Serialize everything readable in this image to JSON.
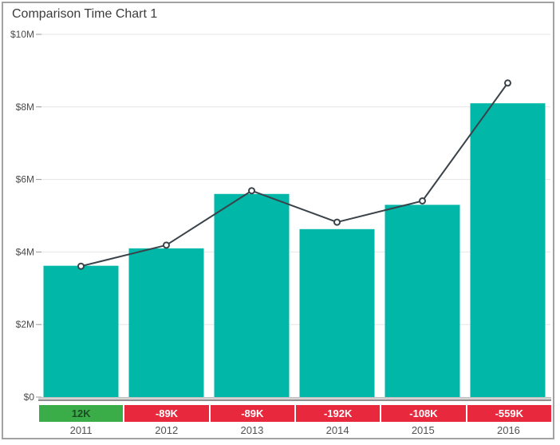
{
  "title": "Comparison Time Chart 1",
  "colors": {
    "bar": "#00b7a8",
    "line": "#3a434a",
    "marker_fill": "#ffffff",
    "marker_stroke": "#3a434a",
    "gridline": "#e5e5e5",
    "tick": "#9a9a9a",
    "axis_band_light": "#dcdcdc",
    "axis_band_mid": "#c2c2c2",
    "axis_band_dark": "#8f8f8f",
    "badge_positive_bg": "#3aad49",
    "badge_positive_text": "#1d4a22",
    "badge_negative_bg": "#e8283d",
    "badge_negative_text": "#ffffff",
    "title_text": "#3c3c3c",
    "y_label_text": "#4c4c4c",
    "year_text": "#525252",
    "widget_border": "#a2a2a2"
  },
  "chart_data": {
    "type": "combo",
    "title": "Comparison Time Chart 1",
    "categories": [
      "2011",
      "2012",
      "2013",
      "2014",
      "2015",
      "2016"
    ],
    "series": [
      {
        "name": "bars",
        "type": "bar",
        "values_usd_m": [
          3.62,
          4.1,
          5.6,
          4.63,
          5.3,
          8.1
        ]
      },
      {
        "name": "line",
        "type": "line",
        "values_usd_m": [
          3.608,
          4.189,
          5.689,
          4.822,
          5.408,
          8.659
        ]
      }
    ],
    "difference_labels": [
      {
        "value": "12K",
        "positive": true
      },
      {
        "value": "-89K",
        "positive": false
      },
      {
        "value": "-89K",
        "positive": false
      },
      {
        "value": "-192K",
        "positive": false
      },
      {
        "value": "-108K",
        "positive": false
      },
      {
        "value": "-559K",
        "positive": false
      }
    ],
    "y_axis": {
      "tick_labels": [
        "$10M",
        "$8M",
        "$6M",
        "$4M",
        "$2M",
        "$0"
      ],
      "min": 0,
      "max": 10000000,
      "unit": "USD"
    },
    "grid": true,
    "legend": false
  }
}
